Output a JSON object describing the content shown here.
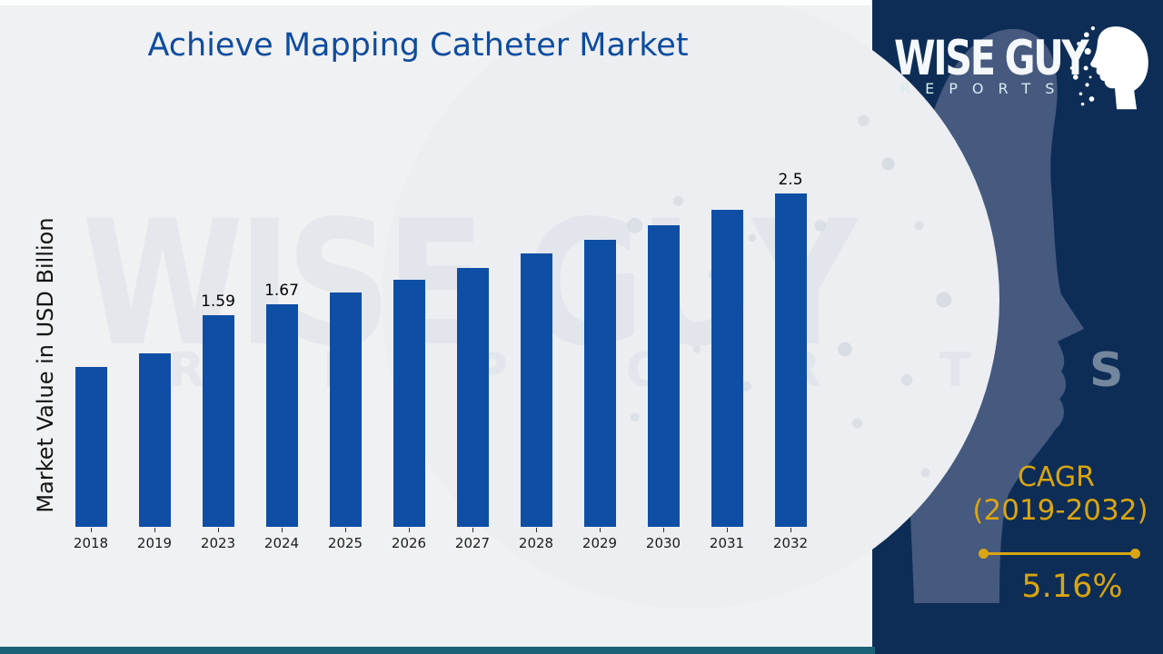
{
  "title": "Achieve Mapping Catheter Market",
  "y_axis_label": "Market Value in USD Billion",
  "watermark": {
    "line1": "WISE GUY",
    "line2": "R E P O R T S"
  },
  "logo": {
    "brand_top": "WISE GUY",
    "brand_bottom": "REPORTS"
  },
  "cagr": {
    "label": "CAGR",
    "range": "(2019-2032)",
    "value": "5.16%"
  },
  "colors": {
    "bar": "#0e4fa5",
    "navy_panel": "#0d2d56",
    "teal_strip": "#1b6178",
    "gold": "#d9a512",
    "title_blue": "#0e4c9e",
    "background": "#f0f1f2"
  },
  "chart_data": {
    "type": "bar",
    "title": "Achieve Mapping Catheter Market",
    "xlabel": "",
    "ylabel": "Market Value in USD Billion",
    "categories": [
      "2018",
      "2019",
      "2023",
      "2024",
      "2025",
      "2026",
      "2027",
      "2028",
      "2029",
      "2030",
      "2031",
      "2032"
    ],
    "values": [
      1.2,
      1.3,
      1.59,
      1.67,
      1.76,
      1.85,
      1.94,
      2.05,
      2.15,
      2.26,
      2.38,
      2.5
    ],
    "data_labels": {
      "2023": "1.59",
      "2024": "1.67",
      "2032": "2.5"
    },
    "ylim": [
      0,
      2.7
    ],
    "grid": false,
    "legend": null
  }
}
